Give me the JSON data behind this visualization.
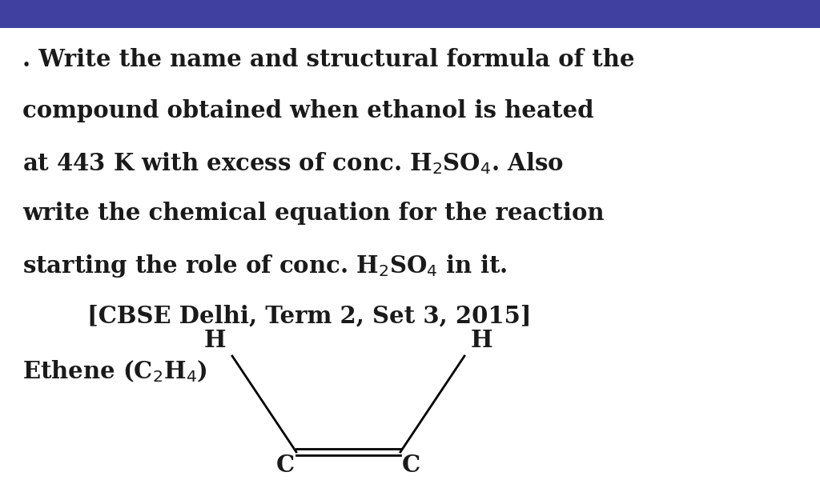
{
  "background_color": "#ffffff",
  "header_color": "#4040a0",
  "font_color": "#1a1a1a",
  "lines": [
    ". Write the name and structural formula of the",
    "compound obtained when ethanol is heated",
    "at 443 K with excess of conc. H₂SO₄. Also",
    "write the chemical equation for the reaction",
    "starting the role of conc. H₂SO₄ in it.",
    "        [CBSE Delhi, Term 2, Set 3, 2015]"
  ],
  "answer_line": "Ethene (C₂H₄)",
  "fontsize": 21,
  "serif_font": "DejaVu Serif"
}
